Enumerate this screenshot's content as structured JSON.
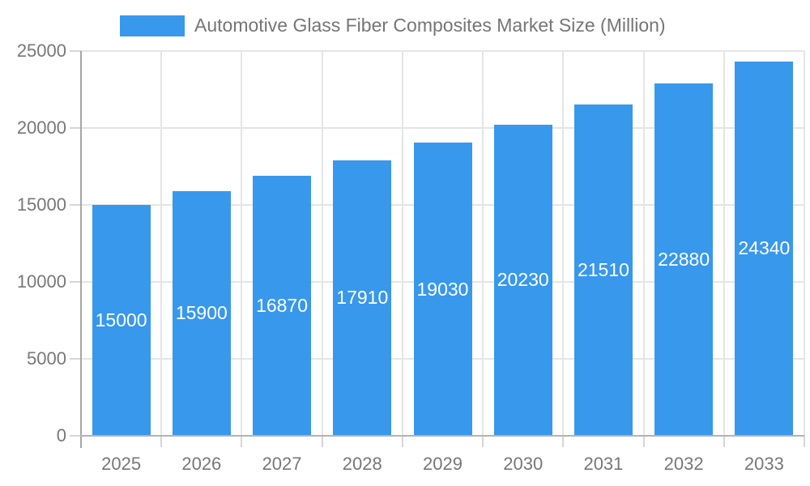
{
  "legend": {
    "label": "Automotive Glass Fiber Composites Market Size (Million)"
  },
  "chart_data": {
    "type": "bar",
    "title": "Automotive Glass Fiber Composites Market Size (Million)",
    "categories": [
      "2025",
      "2026",
      "2027",
      "2028",
      "2029",
      "2030",
      "2031",
      "2032",
      "2033"
    ],
    "values": [
      15000,
      15900,
      16870,
      17910,
      19030,
      20230,
      21510,
      22880,
      24340
    ],
    "xlabel": "",
    "ylabel": "",
    "ylim": [
      0,
      25000
    ],
    "ytick_step": 5000,
    "ytick_labels": [
      "0",
      "5000",
      "10000",
      "15000",
      "20000",
      "25000"
    ],
    "grid": true,
    "legend_position": "top",
    "colors": {
      "bar": "#3898ec",
      "value_label": "#ffffff",
      "axis_label": "#777777",
      "gridline": "#e5e5e5",
      "axis_line_y": "#a6a6a6",
      "axis_line_x": "#b3b3b3"
    }
  }
}
